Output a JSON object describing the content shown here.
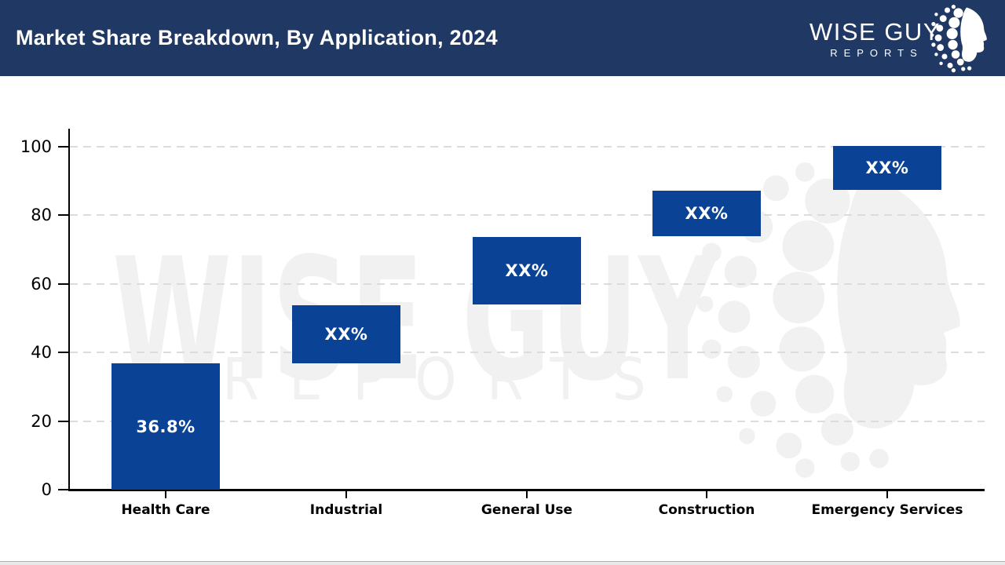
{
  "header": {
    "title": "Market Share Breakdown, By Application, 2024",
    "logo": {
      "line1": "WISE GUY",
      "line2": "REPORTS"
    }
  },
  "watermark": {
    "line1": "WISE GUY",
    "line2": "REPORTS"
  },
  "chart_data": {
    "type": "bar",
    "subtype": "waterfall",
    "title": "Market Share Breakdown, By Application, 2024",
    "categories": [
      "Health Care",
      "Industrial",
      "General Use",
      "Construction",
      "Emergency Services"
    ],
    "segments": [
      {
        "category": "Health Care",
        "start": 0,
        "end": 36.8,
        "label": "36.8%"
      },
      {
        "category": "Industrial",
        "start": 36.9,
        "end": 53.8,
        "label": "XX%"
      },
      {
        "category": "General Use",
        "start": 53.9,
        "end": 73.6,
        "label": "XX%"
      },
      {
        "category": "Construction",
        "start": 73.9,
        "end": 87.1,
        "label": "XX%"
      },
      {
        "category": "Emergency Services",
        "start": 87.4,
        "end": 100.3,
        "label": "XX%"
      }
    ],
    "bar_values_shown": [
      "36.8%",
      "XX%",
      "XX%",
      "XX%",
      "XX%"
    ],
    "yticks": [
      0,
      20,
      40,
      60,
      80,
      100
    ],
    "ylim": [
      0,
      105
    ],
    "xlabel": "",
    "ylabel": "",
    "grid": "horizontal-dashed",
    "legend": "none"
  },
  "colors": {
    "header_bg": "#1f3864",
    "bar": "#0a4396",
    "bar_label": "#ffffff",
    "axis": "#000000",
    "gridline": "#dcdcdc",
    "watermark": "#f1f1f1",
    "background": "#ffffff",
    "footer_line": "#b2b2b2",
    "footer_strip": "#e9e9e9"
  }
}
